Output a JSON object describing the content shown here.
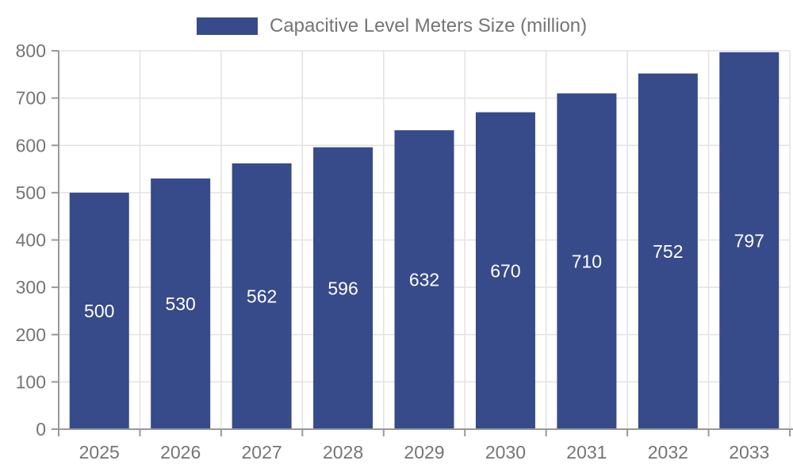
{
  "legend": {
    "label": "Capacitive Level Meters Size (million)",
    "swatch_color": "#374a8a"
  },
  "chart_data": {
    "type": "bar",
    "title": "Capacitive Level Meters Size (million)",
    "categories": [
      "2025",
      "2026",
      "2027",
      "2028",
      "2029",
      "2030",
      "2031",
      "2032",
      "2033"
    ],
    "values": [
      500,
      530,
      562,
      596,
      632,
      670,
      710,
      752,
      797
    ],
    "xlabel": "",
    "ylabel": "",
    "ylim": [
      0,
      800
    ],
    "ytick_step": 100,
    "yticks": [
      0,
      100,
      200,
      300,
      400,
      500,
      600,
      700,
      800
    ],
    "grid": true,
    "legend_position": "top-center",
    "bar_color": "#374a8a",
    "value_label_color": "#ffffff",
    "axis_color": "#999999",
    "grid_color": "#e2e2e2",
    "tick_label_color": "#757575"
  }
}
